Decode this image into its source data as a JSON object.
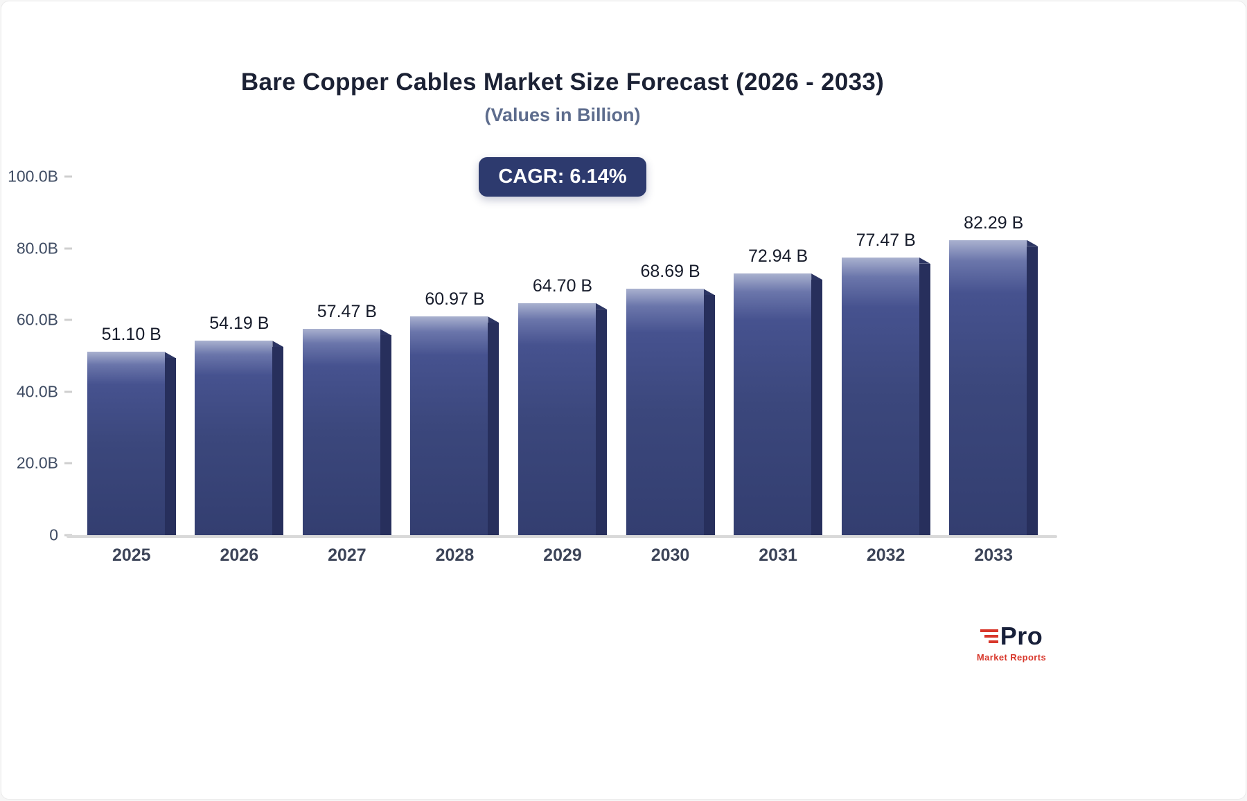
{
  "chart_data": {
    "type": "bar",
    "title": "Bare Copper Cables Market Size Forecast (2026 - 2033)",
    "subtitle": "(Values in Billion)",
    "badge": "CAGR: 6.14%",
    "categories": [
      "2025",
      "2026",
      "2027",
      "2028",
      "2029",
      "2030",
      "2031",
      "2032",
      "2033"
    ],
    "values": [
      51.1,
      54.19,
      57.47,
      60.97,
      64.7,
      68.69,
      72.94,
      77.47,
      82.29
    ],
    "value_labels": [
      "51.10 B",
      "54.19 B",
      "57.47 B",
      "60.97 B",
      "64.70 B",
      "68.69 B",
      "72.94 B",
      "77.47 B",
      "82.29 B"
    ],
    "xlabel": "",
    "ylabel": "",
    "ylim": [
      0,
      100
    ],
    "y_ticks": [
      {
        "value": 100,
        "label": "100.0B"
      },
      {
        "value": 80,
        "label": "80.0B"
      },
      {
        "value": 60,
        "label": "60.0B"
      },
      {
        "value": 40,
        "label": "40.0B"
      },
      {
        "value": 20,
        "label": "20.0B"
      },
      {
        "value": 0,
        "label": "0"
      }
    ],
    "grid": false,
    "legend": false,
    "colors": {
      "bar_front_top": "#a9b1cf",
      "bar_front": "#3d4a87",
      "bar_front_bottom": "#333e70",
      "bar_side": "#272f5c",
      "badge_bg": "#2d3a6e",
      "badge_text": "#ffffff",
      "title": "#1b2134",
      "subtitle": "#5d6c8d",
      "axis_text": "#3f4c63",
      "baseline": "#d9d9d9"
    }
  },
  "logo": {
    "name": "Pro",
    "subtext": "Market Reports",
    "color": "#d8372b"
  }
}
